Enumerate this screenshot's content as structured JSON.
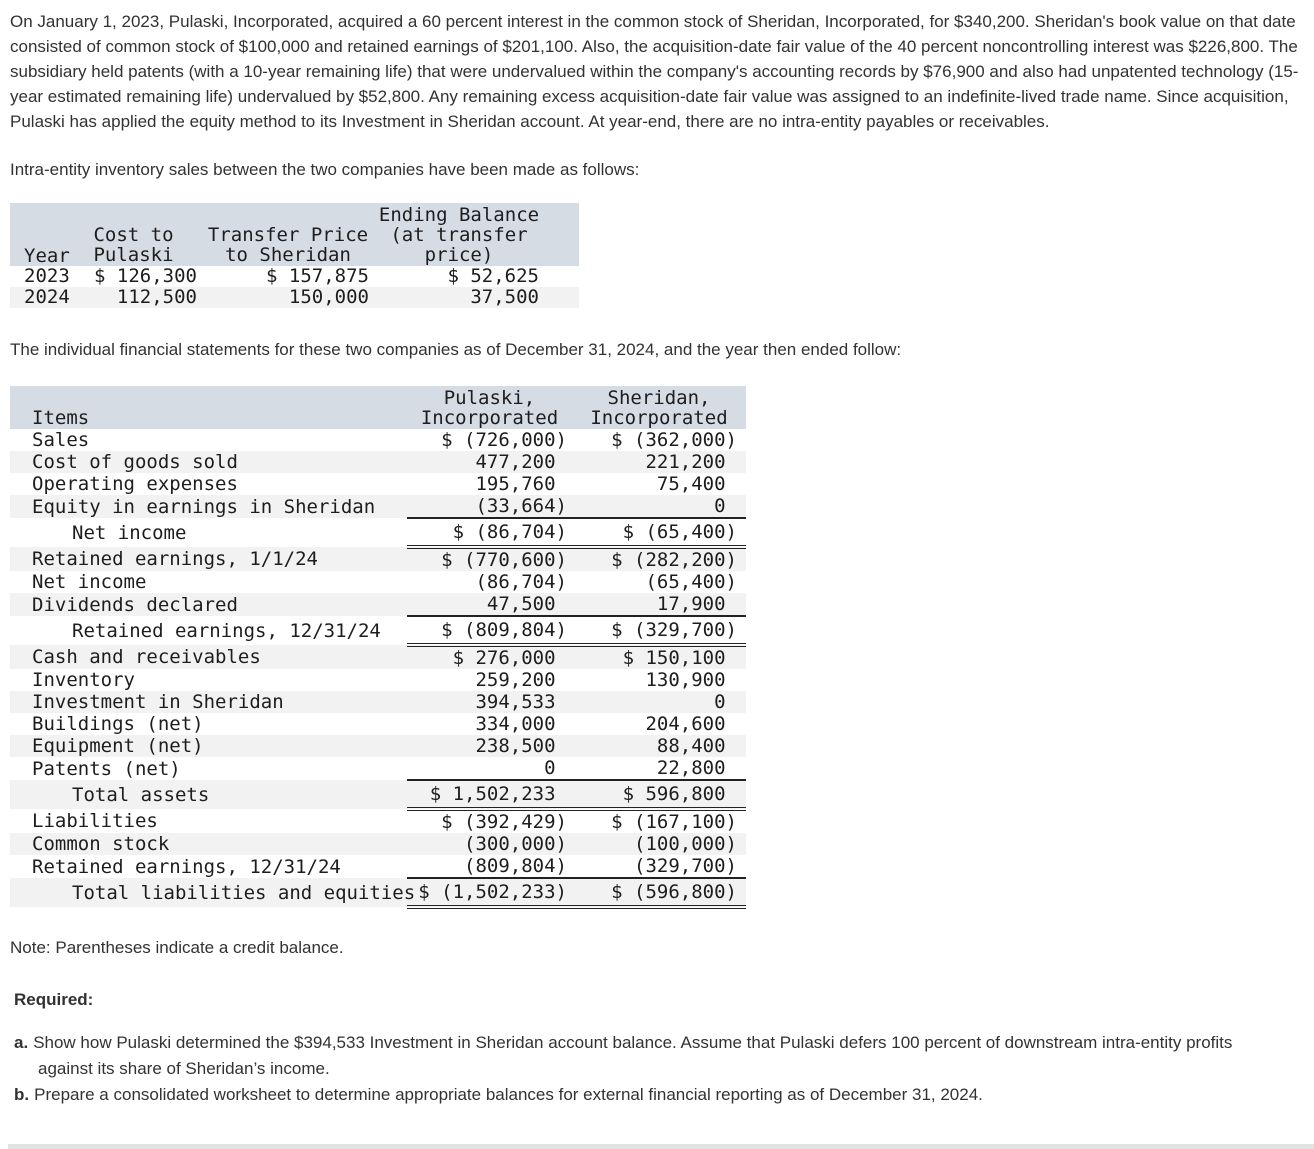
{
  "intro": "On January 1, 2023, Pulaski, Incorporated, acquired a 60 percent interest in the common stock of Sheridan, Incorporated, for $340,200. Sheridan's book value on that date consisted of common stock of $100,000 and retained earnings of $201,100. Also, the acquisition-date fair value of the 40 percent noncontrolling interest was $226,800. The subsidiary held patents (with a 10-year remaining life) that were undervalued within the company's accounting records by $76,900 and also had unpatented technology (15-year estimated remaining life) undervalued by $52,800. Any remaining excess acquisition-date fair value was assigned to an indefinite-lived trade name. Since acquisition, Pulaski has applied the equity method to its Investment in Sheridan account. At year-end, there are no intra-entity payables or receivables.",
  "sales_intro": "Intra-entity inventory sales between the two companies have been made as follows:",
  "sales_table": {
    "headers": [
      "Year",
      "Cost to\nPulaski",
      "Transfer Price\nto Sheridan",
      "Ending Balance\n(at transfer\nprice)"
    ],
    "rows": [
      [
        "2023",
        "$ 126,300",
        "$ 157,875",
        "$ 52,625"
      ],
      [
        "2024",
        "112,500",
        "150,000",
        "37,500"
      ]
    ]
  },
  "statements_intro": "The individual financial statements for these two companies as of December 31, 2024, and the year then ended follow:",
  "fin_table": {
    "headers": [
      "Items",
      "Pulaski,\nIncorporated",
      "Sheridan,\nIncorporated"
    ],
    "rows": [
      {
        "label": "Sales",
        "indent": false,
        "total": false,
        "pulaski": "$ (726,000)",
        "sheridan": "$ (362,000)",
        "rule": ""
      },
      {
        "label": "Cost of goods sold",
        "indent": false,
        "total": false,
        "pulaski": "477,200",
        "sheridan": "221,200",
        "rule": ""
      },
      {
        "label": "Operating expenses",
        "indent": false,
        "total": false,
        "pulaski": "195,760",
        "sheridan": "75,400",
        "rule": ""
      },
      {
        "label": "Equity in earnings in Sheridan",
        "indent": false,
        "total": false,
        "pulaski": "(33,664)",
        "sheridan": "0",
        "rule": "single"
      },
      {
        "label": "Net income",
        "indent": true,
        "total": true,
        "pulaski": "$ (86,704)",
        "sheridan": "$ (65,400)",
        "rule": "double"
      },
      {
        "label": "Retained earnings, 1/1/24",
        "indent": false,
        "total": false,
        "pulaski": "$ (770,600)",
        "sheridan": "$ (282,200)",
        "rule": ""
      },
      {
        "label": "Net income",
        "indent": false,
        "total": false,
        "pulaski": "(86,704)",
        "sheridan": "(65,400)",
        "rule": ""
      },
      {
        "label": "Dividends declared",
        "indent": false,
        "total": false,
        "pulaski": "47,500",
        "sheridan": "17,900",
        "rule": "single"
      },
      {
        "label": "Retained earnings, 12/31/24",
        "indent": true,
        "total": true,
        "pulaski": "$ (809,804)",
        "sheridan": "$ (329,700)",
        "rule": "double"
      },
      {
        "label": "Cash and receivables",
        "indent": false,
        "total": false,
        "pulaski": "$ 276,000",
        "sheridan": "$ 150,100",
        "rule": ""
      },
      {
        "label": "Inventory",
        "indent": false,
        "total": false,
        "pulaski": "259,200",
        "sheridan": "130,900",
        "rule": ""
      },
      {
        "label": "Investment in Sheridan",
        "indent": false,
        "total": false,
        "pulaski": "394,533",
        "sheridan": "0",
        "rule": ""
      },
      {
        "label": "Buildings (net)",
        "indent": false,
        "total": false,
        "pulaski": "334,000",
        "sheridan": "204,600",
        "rule": ""
      },
      {
        "label": "Equipment (net)",
        "indent": false,
        "total": false,
        "pulaski": "238,500",
        "sheridan": "88,400",
        "rule": ""
      },
      {
        "label": "Patents (net)",
        "indent": false,
        "total": false,
        "pulaski": "0",
        "sheridan": "22,800",
        "rule": "single"
      },
      {
        "label": "Total assets",
        "indent": true,
        "total": true,
        "pulaski": "$ 1,502,233",
        "sheridan": "$ 596,800",
        "rule": "double"
      },
      {
        "label": "Liabilities",
        "indent": false,
        "total": false,
        "pulaski": "$ (392,429)",
        "sheridan": "$ (167,100)",
        "rule": ""
      },
      {
        "label": "Common stock",
        "indent": false,
        "total": false,
        "pulaski": "(300,000)",
        "sheridan": "(100,000)",
        "rule": ""
      },
      {
        "label": "Retained earnings, 12/31/24",
        "indent": false,
        "total": false,
        "pulaski": "(809,804)",
        "sheridan": "(329,700)",
        "rule": "single"
      },
      {
        "label": "Total liabilities and equities",
        "indent": true,
        "total": true,
        "pulaski": "$ (1,502,233)",
        "sheridan": "$ (596,800)",
        "rule": "double"
      }
    ]
  },
  "note": "Note: Parentheses indicate a credit balance.",
  "required": {
    "title": "Required:",
    "items": [
      {
        "label": "a.",
        "text": "Show how Pulaski determined the $394,533 Investment in Sheridan account balance. Assume that Pulaski defers 100 percent of downstream intra-entity profits against its share of Sheridan’s income."
      },
      {
        "label": "b.",
        "text": "Prepare a consolidated worksheet to determine appropriate balances for external financial reporting as of December 31, 2024."
      }
    ]
  },
  "colors": {
    "table_header_bg": "#d6dce4",
    "alt_row_bg": "#f2f2f2",
    "rule_line": "#222222",
    "bottom_bar": "#e3e3e3"
  }
}
